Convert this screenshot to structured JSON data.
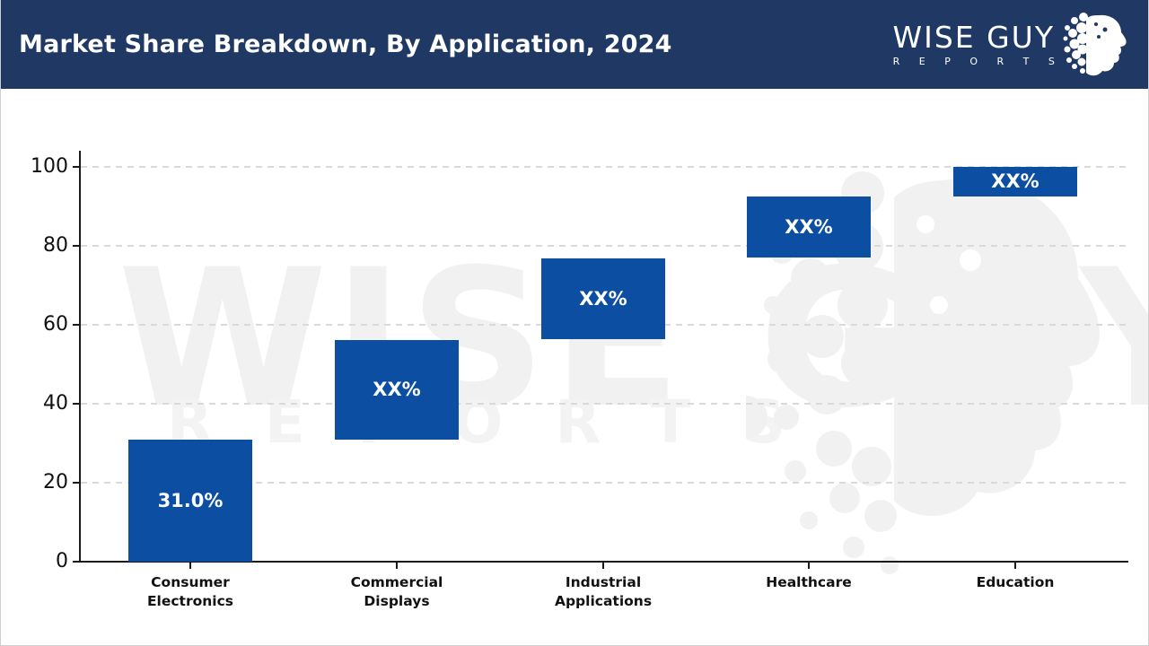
{
  "header": {
    "title": "Market Share Breakdown, By Application, 2024",
    "bg_color": "#1f3864",
    "brand": {
      "name": "WISE GUY",
      "sub": "R E P O R T S"
    }
  },
  "watermark": {
    "line1": "WISE GUY",
    "line2": "REPORTS"
  },
  "chart_data": {
    "type": "bar",
    "subtype": "waterfall",
    "title": "Market Share Breakdown, By Application, 2024",
    "xlabel": "",
    "ylabel": "",
    "categories": [
      "Consumer Electronics",
      "Commercial Displays",
      "Industrial Applications",
      "Healthcare",
      "Education"
    ],
    "category_lines": [
      [
        "Consumer",
        "Electronics"
      ],
      [
        "Commercial",
        "Displays"
      ],
      [
        "Industrial",
        "Applications"
      ],
      [
        "Healthcare"
      ],
      [
        "Education"
      ]
    ],
    "segments": [
      {
        "category": "Consumer Electronics",
        "start": 0,
        "end": 31.0,
        "value": 31.0,
        "label": "31.0%"
      },
      {
        "category": "Commercial Displays",
        "start": 31.0,
        "end": 56.2,
        "value": 25.2,
        "label": "XX%"
      },
      {
        "category": "Industrial Applications",
        "start": 56.4,
        "end": 76.8,
        "value": 20.4,
        "label": "XX%"
      },
      {
        "category": "Healthcare",
        "start": 77.0,
        "end": 92.6,
        "value": 15.6,
        "label": "XX%"
      },
      {
        "category": "Education",
        "start": 92.6,
        "end": 100.0,
        "value": 7.4,
        "label": "XX%"
      }
    ],
    "yticks": [
      0,
      20,
      40,
      60,
      80,
      100
    ],
    "ylim": [
      0,
      104
    ],
    "grid": {
      "horizontal": true,
      "style": "dashed",
      "color": "#dadada"
    },
    "legend": null,
    "bar_color": "#0b4ea2",
    "bar_label_color": "#ffffff"
  }
}
